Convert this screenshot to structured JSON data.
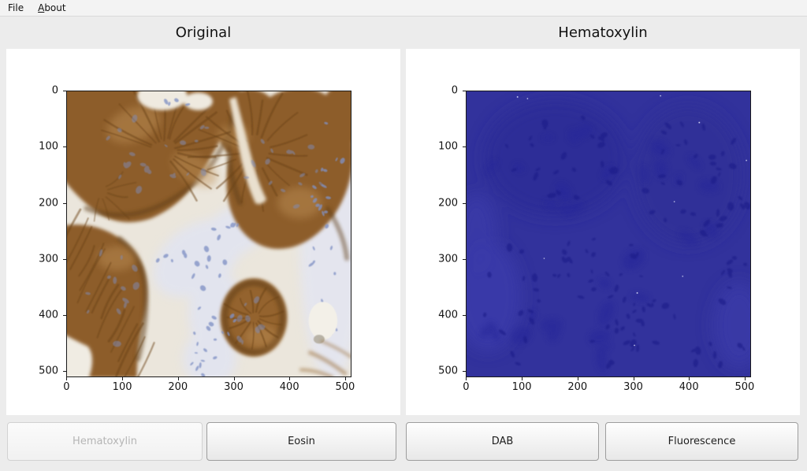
{
  "menubar": {
    "items": [
      {
        "label": "File",
        "underline": -1
      },
      {
        "label": "About",
        "underline": 0
      }
    ]
  },
  "panels": [
    {
      "title": "Original",
      "image": "ihc-stained-tissue-micrograph",
      "x_ticks": [
        0,
        100,
        200,
        300,
        400,
        500
      ],
      "y_ticks": [
        0,
        100,
        200,
        300,
        400,
        500
      ]
    },
    {
      "title": "Hematoxylin",
      "image": "hematoxylin-channel-micrograph",
      "x_ticks": [
        0,
        100,
        200,
        300,
        400,
        500
      ],
      "y_ticks": [
        0,
        100,
        200,
        300,
        400,
        500
      ]
    }
  ],
  "buttons": [
    {
      "label": "Hematoxylin",
      "enabled": false
    },
    {
      "label": "Eosin",
      "enabled": true
    },
    {
      "label": "DAB",
      "enabled": true
    },
    {
      "label": "Fluorescence",
      "enabled": true
    }
  ],
  "colors": {
    "window_bg": "#ececec",
    "figure_bg": "#ffffff",
    "hematoxylin_base": "#32329c",
    "hematoxylin_nuclei": "#1e1e89",
    "dab_brown": "#8d5d2a",
    "stroma_nuclei_blue": "#8091c4",
    "tissue_background": "#ebe6dc"
  }
}
